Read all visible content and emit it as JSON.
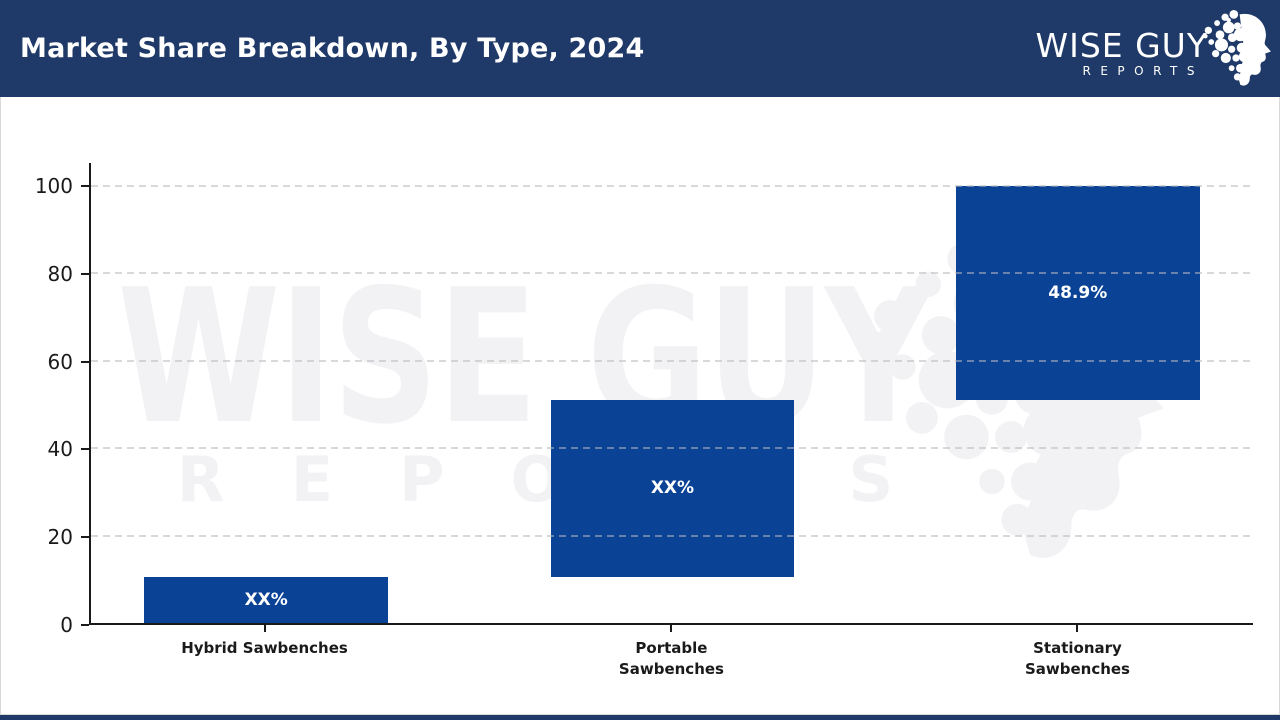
{
  "header": {
    "title": "Market Share Breakdown, By Type, 2024",
    "logo": {
      "line1": "WISE GUY",
      "line2": "REPORTS"
    }
  },
  "watermark": {
    "line1": "WISE GUY",
    "line2": "REPORTS"
  },
  "colors": {
    "header_bg": "#1f3a68",
    "footer_bg": "#1f3a68",
    "bar": "#0a4296",
    "bar_label": "#ffffff",
    "axis": "#1a1a1a",
    "watermark": "#f2f2f4"
  },
  "chart_data": {
    "type": "bar",
    "subtype": "waterfall",
    "title": "Market Share Breakdown, By Type, 2024",
    "xlabel": "",
    "ylabel": "",
    "ylim": [
      0,
      105
    ],
    "grid": true,
    "gridstyle": "dashed",
    "yticks": [
      0,
      20,
      40,
      60,
      80,
      100
    ],
    "categories": [
      [
        "Hybrid Sawbenches"
      ],
      [
        "Portable",
        "Sawbenches"
      ],
      [
        "Stationary",
        "Sawbenches"
      ]
    ],
    "segments": [
      {
        "category": "Hybrid Sawbenches",
        "start": 0,
        "end": 10.6,
        "label": "XX%"
      },
      {
        "category": "Portable Sawbenches",
        "start": 10.6,
        "end": 51.1,
        "label": "XX%"
      },
      {
        "category": "Stationary Sawbenches",
        "start": 51.1,
        "end": 100,
        "label": "48.9%",
        "value": 48.9
      }
    ],
    "bar_color": "#0a4296",
    "label_color": "#ffffff"
  }
}
